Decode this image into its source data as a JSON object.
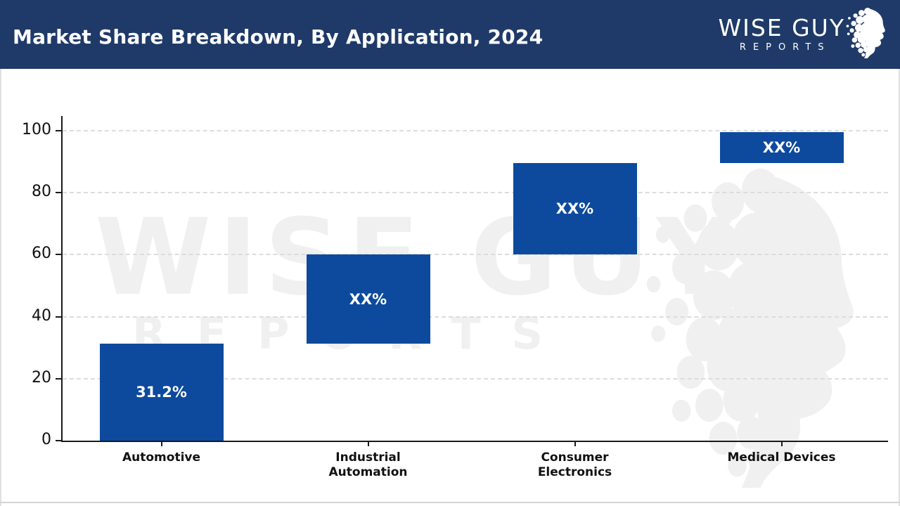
{
  "header": {
    "title": "Market Share Breakdown, By Application, 2024",
    "background_color": "#1f3a68",
    "logo": {
      "line1": "WISE GUY",
      "line2": "REPORTS"
    }
  },
  "watermark": {
    "line1": "WISE GUY",
    "line2": "REPORTS"
  },
  "chart_data": {
    "type": "bar",
    "subtype": "waterfall",
    "title": "Market Share Breakdown, By Application, 2024",
    "categories": [
      "Automotive",
      "Industrial Automation",
      "Consumer Electronics",
      "Medical Devices"
    ],
    "segments": [
      {
        "category": "Automotive",
        "label": "31.2%",
        "start": 0,
        "end": 31.2
      },
      {
        "category": "Industrial Automation",
        "label": "XX%",
        "start": 31.2,
        "end": 60.0
      },
      {
        "category": "Consumer Electronics",
        "label": "XX%",
        "start": 60.0,
        "end": 89.5
      },
      {
        "category": "Medical Devices",
        "label": "XX%",
        "start": 89.5,
        "end": 99.5
      }
    ],
    "yticks": [
      0,
      20,
      40,
      60,
      80,
      100
    ],
    "ylim": [
      0,
      105
    ],
    "xlabel": "",
    "ylabel": "",
    "bar_color": "#0d4a9e",
    "grid": "horizontal-dashed",
    "legend_position": "none"
  }
}
